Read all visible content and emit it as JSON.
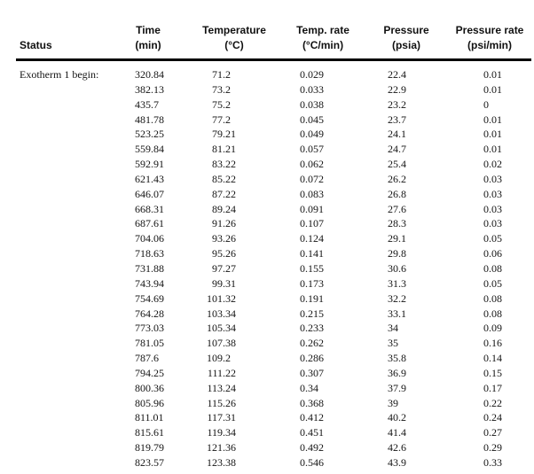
{
  "colors": {
    "background": "#ffffff",
    "text": "#141414",
    "header_text": "#111111",
    "rule": "#000000"
  },
  "table": {
    "headers": [
      {
        "line1": "Status",
        "line2": ""
      },
      {
        "line1": "Time",
        "line2": "(min)"
      },
      {
        "line1": "Temperature",
        "line2": "(°C)"
      },
      {
        "line1": "Temp. rate",
        "line2": "(°C/min)"
      },
      {
        "line1": "Pressure",
        "line2": "(psia)"
      },
      {
        "line1": "Pressure rate",
        "line2": "(psi/min)"
      }
    ],
    "status_label": "Exotherm 1 begin:",
    "rows": [
      {
        "time": "320.84",
        "temperature": "71.2",
        "temp_rate": "0.029",
        "pressure": "22.4",
        "pressure_rate": "0.01"
      },
      {
        "time": "382.13",
        "temperature": "73.2",
        "temp_rate": "0.033",
        "pressure": "22.9",
        "pressure_rate": "0.01"
      },
      {
        "time": "435.7",
        "temperature": "75.2",
        "temp_rate": "0.038",
        "pressure": "23.2",
        "pressure_rate": "0"
      },
      {
        "time": "481.78",
        "temperature": "77.2",
        "temp_rate": "0.045",
        "pressure": "23.7",
        "pressure_rate": "0.01"
      },
      {
        "time": "523.25",
        "temperature": "79.21",
        "temp_rate": "0.049",
        "pressure": "24.1",
        "pressure_rate": "0.01"
      },
      {
        "time": "559.84",
        "temperature": "81.21",
        "temp_rate": "0.057",
        "pressure": "24.7",
        "pressure_rate": "0.01"
      },
      {
        "time": "592.91",
        "temperature": "83.22",
        "temp_rate": "0.062",
        "pressure": "25.4",
        "pressure_rate": "0.02"
      },
      {
        "time": "621.43",
        "temperature": "85.22",
        "temp_rate": "0.072",
        "pressure": "26.2",
        "pressure_rate": "0.03"
      },
      {
        "time": "646.07",
        "temperature": "87.22",
        "temp_rate": "0.083",
        "pressure": "26.8",
        "pressure_rate": "0.03"
      },
      {
        "time": "668.31",
        "temperature": "89.24",
        "temp_rate": "0.091",
        "pressure": "27.6",
        "pressure_rate": "0.03"
      },
      {
        "time": "687.61",
        "temperature": "91.26",
        "temp_rate": "0.107",
        "pressure": "28.3",
        "pressure_rate": "0.03"
      },
      {
        "time": "704.06",
        "temperature": "93.26",
        "temp_rate": "0.124",
        "pressure": "29.1",
        "pressure_rate": "0.05"
      },
      {
        "time": "718.63",
        "temperature": "95.26",
        "temp_rate": "0.141",
        "pressure": "29.8",
        "pressure_rate": "0.06"
      },
      {
        "time": "731.88",
        "temperature": "97.27",
        "temp_rate": "0.155",
        "pressure": "30.6",
        "pressure_rate": "0.08"
      },
      {
        "time": "743.94",
        "temperature": "99.31",
        "temp_rate": "0.173",
        "pressure": "31.3",
        "pressure_rate": "0.05"
      },
      {
        "time": "754.69",
        "temperature": "101.32",
        "temp_rate": "0.191",
        "pressure": "32.2",
        "pressure_rate": "0.08"
      },
      {
        "time": "764.28",
        "temperature": "103.34",
        "temp_rate": "0.215",
        "pressure": "33.1",
        "pressure_rate": "0.08"
      },
      {
        "time": "773.03",
        "temperature": "105.34",
        "temp_rate": "0.233",
        "pressure": "34",
        "pressure_rate": "0.09"
      },
      {
        "time": "781.05",
        "temperature": "107.38",
        "temp_rate": "0.262",
        "pressure": "35",
        "pressure_rate": "0.16"
      },
      {
        "time": "787.6",
        "temperature": "109.2",
        "temp_rate": "0.286",
        "pressure": "35.8",
        "pressure_rate": "0.14"
      },
      {
        "time": "794.25",
        "temperature": "111.22",
        "temp_rate": "0.307",
        "pressure": "36.9",
        "pressure_rate": "0.15"
      },
      {
        "time": "800.36",
        "temperature": "113.24",
        "temp_rate": "0.34",
        "pressure": "37.9",
        "pressure_rate": "0.17"
      },
      {
        "time": "805.96",
        "temperature": "115.26",
        "temp_rate": "0.368",
        "pressure": "39",
        "pressure_rate": "0.22"
      },
      {
        "time": "811.01",
        "temperature": "117.31",
        "temp_rate": "0.412",
        "pressure": "40.2",
        "pressure_rate": "0.24"
      },
      {
        "time": "815.61",
        "temperature": "119.34",
        "temp_rate": "0.451",
        "pressure": "41.4",
        "pressure_rate": "0.27"
      },
      {
        "time": "819.79",
        "temperature": "121.36",
        "temp_rate": "0.492",
        "pressure": "42.6",
        "pressure_rate": "0.29"
      },
      {
        "time": "823.57",
        "temperature": "123.38",
        "temp_rate": "0.546",
        "pressure": "43.9",
        "pressure_rate": "0.33"
      }
    ]
  }
}
